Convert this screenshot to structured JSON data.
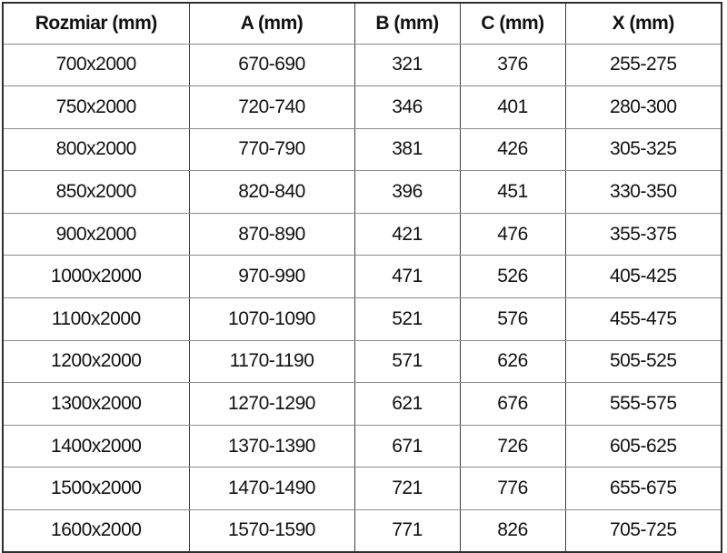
{
  "table": {
    "columns": [
      "Rozmiar (mm)",
      "A (mm)",
      "B (mm)",
      "C (mm)",
      "X (mm)"
    ],
    "rows": [
      [
        "700x2000",
        "670-690",
        "321",
        "376",
        "255-275"
      ],
      [
        "750x2000",
        "720-740",
        "346",
        "401",
        "280-300"
      ],
      [
        "800x2000",
        "770-790",
        "381",
        "426",
        "305-325"
      ],
      [
        "850x2000",
        "820-840",
        "396",
        "451",
        "330-350"
      ],
      [
        "900x2000",
        "870-890",
        "421",
        "476",
        "355-375"
      ],
      [
        "1000x2000",
        "970-990",
        "471",
        "526",
        "405-425"
      ],
      [
        "1100x2000",
        "1070-1090",
        "521",
        "576",
        "455-475"
      ],
      [
        "1200x2000",
        "1170-1190",
        "571",
        "626",
        "505-525"
      ],
      [
        "1300x2000",
        "1270-1290",
        "621",
        "676",
        "555-575"
      ],
      [
        "1400x2000",
        "1370-1390",
        "671",
        "726",
        "605-625"
      ],
      [
        "1500x2000",
        "1470-1490",
        "721",
        "776",
        "655-675"
      ],
      [
        "1600x2000",
        "1570-1590",
        "771",
        "826",
        "705-725"
      ]
    ]
  },
  "colors": {
    "border_outer": "#2f2f2f",
    "border_vertical": "#3f3f3f",
    "border_horizontal": "#8c8c8c",
    "text": "#111111",
    "background": "#ffffff"
  }
}
